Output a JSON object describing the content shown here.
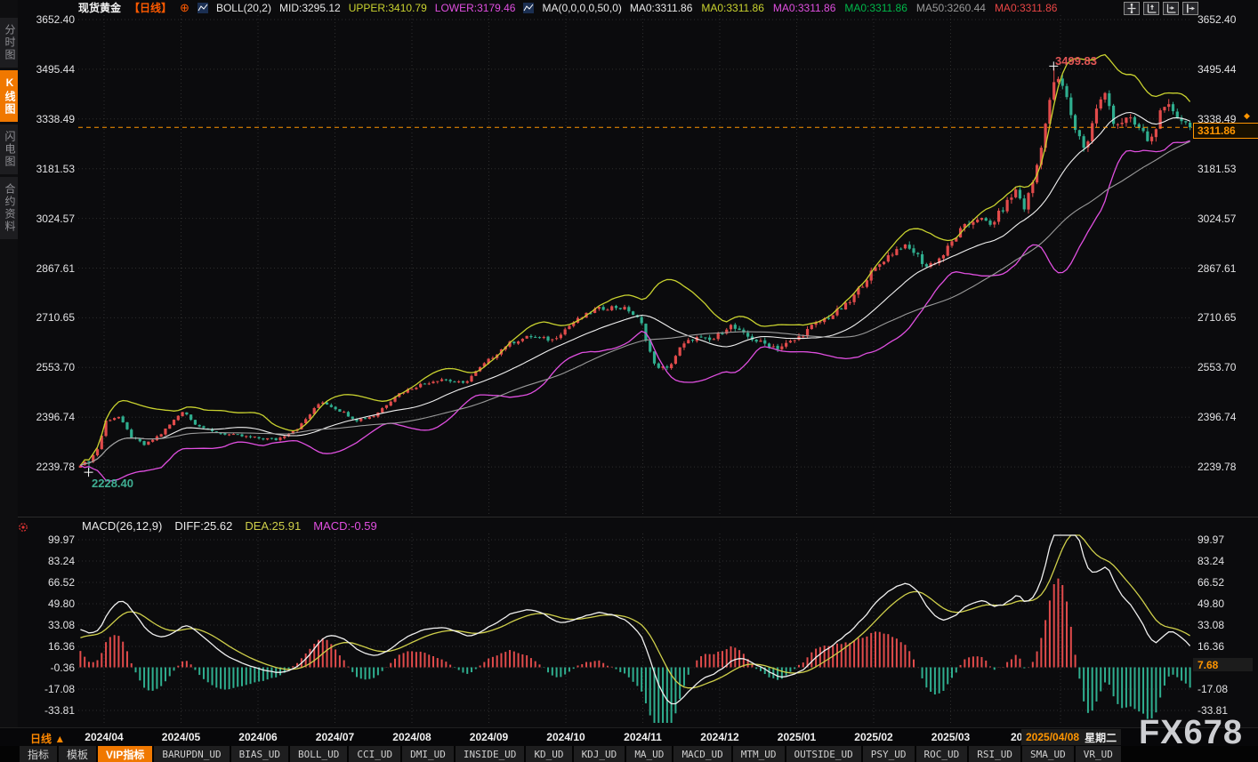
{
  "header": {
    "symbol": "现货黄金",
    "period_tag": "【日线】",
    "plus_icon": "⊕",
    "boll_label": "BOLL(20,2)",
    "boll_mid": "MID:3295.12",
    "boll_upper": "UPPER:3410.79",
    "boll_lower": "LOWER:3179.46",
    "ma_label": "MA(0,0,0,0,50,0)",
    "ma_values": [
      {
        "text": "MA0:3311.86",
        "color": "#e8e8e8"
      },
      {
        "text": "MA0:3311.86",
        "color": "#c9d22f"
      },
      {
        "text": "MA0:3311.86",
        "color": "#e04fe0"
      },
      {
        "text": "MA0:3311.86",
        "color": "#00b84a"
      },
      {
        "text": "MA50:3260.44",
        "color": "#9a9a9a"
      },
      {
        "text": "MA0:3311.86",
        "color": "#e84545"
      }
    ]
  },
  "sidebar": {
    "tabs": [
      {
        "label": "分时图",
        "active": false
      },
      {
        "label": "K线图",
        "active": true
      },
      {
        "label": "闪电图",
        "active": false
      },
      {
        "label": "合约资料",
        "active": false
      }
    ]
  },
  "price_axis": {
    "ticks": [
      "3652.40",
      "3495.44",
      "3338.49",
      "3181.53",
      "3024.57",
      "2867.61",
      "2710.65",
      "2553.70",
      "2396.74",
      "2239.78"
    ],
    "current": "3311.86"
  },
  "macd_panel": {
    "title": "MACD(26,12,9)",
    "diff_label": "DIFF:25.62",
    "dea_label": "DEA:25.91",
    "macd_label": "MACD:-0.59",
    "ticks": [
      "99.97",
      "83.24",
      "66.52",
      "49.80",
      "33.08",
      "16.36",
      "-0.36",
      "-17.08",
      "-33.81"
    ],
    "current": "7.68"
  },
  "markers": {
    "high": "3499.83",
    "low": "2228.40"
  },
  "x_axis": {
    "months": [
      "2024/04",
      "2024/05",
      "2024/06",
      "2024/07",
      "2024/08",
      "2024/09",
      "2024/10",
      "2024/11",
      "2024/12",
      "2025/01",
      "2025/02",
      "2025/03"
    ],
    "partial": "20",
    "highlight_date": "2025/04/08",
    "weekday": "星期二"
  },
  "footer": {
    "period": "日线",
    "period_arrow": "▲",
    "cjk_tabs": [
      {
        "label": "指标",
        "active": false
      },
      {
        "label": "模板",
        "active": false
      },
      {
        "label": "VIP指标",
        "active": true
      }
    ],
    "ud_tabs": [
      "BARUPDN_UD",
      "BIAS_UD",
      "BOLL_UD",
      "CCI_UD",
      "DMI_UD",
      "INSIDE_UD",
      "KD_UD",
      "KDJ_UD",
      "MA_UD",
      "MACD_UD",
      "MTM_UD",
      "OUTSIDE_UD",
      "PSY_UD",
      "ROC_UD",
      "RSI_UD",
      "SMA_UD",
      "VR_UD"
    ]
  },
  "watermark": "FX678",
  "colors": {
    "up": "#e14b4b",
    "down": "#2fae8f",
    "boll_upper": "#c9d22f",
    "boll_lower": "#e04fe0",
    "ma20": "#f0f0f0",
    "ma50": "#9a9a9a",
    "diff_line": "#f0f0f0",
    "dea_line": "#cfcf4a",
    "hist_pos": "#e14b4b",
    "hist_neg": "#2fae8f",
    "grid": "#2e2e2e",
    "accent": "#ff9500",
    "active_tab": "#f07800"
  },
  "chart_data": {
    "type": "candlestick",
    "title": "现货黄金 日线 K线图 (Spot Gold, Daily)",
    "x_range": [
      "2024/04",
      "2025/04/08"
    ],
    "price_ticks": [
      3652.4,
      3495.44,
      3338.49,
      3181.53,
      3024.57,
      2867.61,
      2710.65,
      2553.7,
      2396.74,
      2239.78
    ],
    "macd_ticks": [
      99.97,
      83.24,
      66.52,
      49.8,
      33.08,
      16.36,
      -0.36,
      -17.08,
      -33.81
    ],
    "high_point": {
      "value": 3499.83,
      "t": 0.878
    },
    "low_point": {
      "value": 2228.4,
      "t": 0.008
    },
    "last_close": 3311.86,
    "boll": {
      "period": "20,2",
      "mid": 3295.12,
      "upper": 3410.79,
      "lower": 3179.46
    },
    "ma50_last": 3260.44,
    "macd": {
      "params": "26,12,9",
      "diff": 25.62,
      "dea": 25.91,
      "macd": -0.59,
      "axis_current": 7.68
    },
    "candle_count": 262,
    "close_anchors": [
      [
        0,
        2248
      ],
      [
        0.008,
        2258
      ],
      [
        0.016,
        2300
      ],
      [
        0.023,
        2385
      ],
      [
        0.034,
        2400
      ],
      [
        0.046,
        2335
      ],
      [
        0.058,
        2308
      ],
      [
        0.073,
        2345
      ],
      [
        0.093,
        2420
      ],
      [
        0.101,
        2382
      ],
      [
        0.117,
        2352
      ],
      [
        0.137,
        2340
      ],
      [
        0.157,
        2332
      ],
      [
        0.177,
        2326
      ],
      [
        0.197,
        2365
      ],
      [
        0.217,
        2448
      ],
      [
        0.237,
        2412
      ],
      [
        0.249,
        2388
      ],
      [
        0.265,
        2402
      ],
      [
        0.285,
        2468
      ],
      [
        0.305,
        2498
      ],
      [
        0.325,
        2518
      ],
      [
        0.345,
        2502
      ],
      [
        0.365,
        2568
      ],
      [
        0.385,
        2628
      ],
      [
        0.405,
        2652
      ],
      [
        0.425,
        2640
      ],
      [
        0.445,
        2698
      ],
      [
        0.465,
        2738
      ],
      [
        0.481,
        2745
      ],
      [
        0.493,
        2738
      ],
      [
        0.505,
        2698
      ],
      [
        0.517,
        2562
      ],
      [
        0.529,
        2548
      ],
      [
        0.541,
        2618
      ],
      [
        0.553,
        2648
      ],
      [
        0.569,
        2638
      ],
      [
        0.585,
        2688
      ],
      [
        0.597,
        2658
      ],
      [
        0.613,
        2632
      ],
      [
        0.629,
        2616
      ],
      [
        0.645,
        2642
      ],
      [
        0.661,
        2688
      ],
      [
        0.677,
        2718
      ],
      [
        0.693,
        2758
      ],
      [
        0.709,
        2838
      ],
      [
        0.725,
        2898
      ],
      [
        0.74,
        2938
      ],
      [
        0.752,
        2918
      ],
      [
        0.762,
        2872
      ],
      [
        0.776,
        2902
      ],
      [
        0.792,
        2982
      ],
      [
        0.808,
        3028
      ],
      [
        0.82,
        3002
      ],
      [
        0.832,
        3058
      ],
      [
        0.844,
        3118
      ],
      [
        0.85,
        3052
      ],
      [
        0.86,
        3158
      ],
      [
        0.87,
        3328
      ],
      [
        0.878,
        3468
      ],
      [
        0.886,
        3438
      ],
      [
        0.896,
        3312
      ],
      [
        0.906,
        3242
      ],
      [
        0.916,
        3378
      ],
      [
        0.924,
        3418
      ],
      [
        0.932,
        3322
      ],
      [
        0.944,
        3338
      ],
      [
        0.956,
        3302
      ],
      [
        0.964,
        3262
      ],
      [
        0.972,
        3348
      ],
      [
        0.982,
        3378
      ],
      [
        0.992,
        3338
      ],
      [
        1,
        3311.86
      ]
    ]
  }
}
